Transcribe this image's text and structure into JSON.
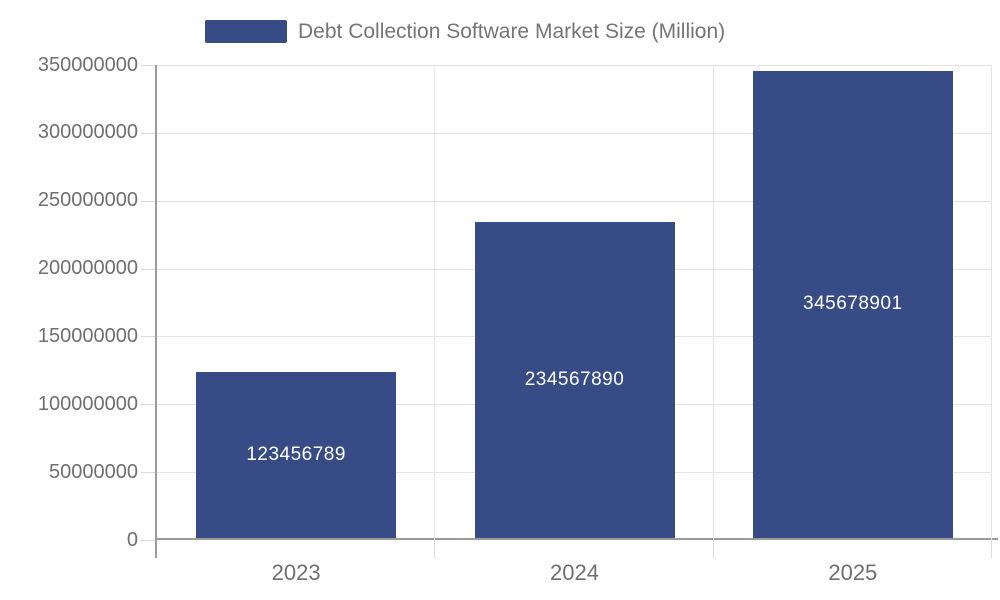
{
  "chart_data": {
    "type": "bar",
    "title": "Debt Collection Software Market Size (Million)",
    "legend": {
      "label": "Debt Collection Software Market Size (Million)",
      "position": "top-center"
    },
    "categories": [
      "2023",
      "2024",
      "2025"
    ],
    "values": [
      123456789,
      234567890,
      345678901
    ],
    "bar_labels": [
      "123456789",
      "234567890",
      "345678901"
    ],
    "y_ticks": [
      0,
      50000000,
      100000000,
      150000000,
      200000000,
      250000000,
      300000000,
      350000000
    ],
    "y_tick_labels": [
      "0",
      "50000000",
      "100000000",
      "150000000",
      "200000000",
      "250000000",
      "300000000",
      "350000000"
    ],
    "ylim": [
      0,
      350000000
    ],
    "xlabel": "",
    "ylabel": "",
    "grid": true,
    "colors": {
      "bar": "#374B87",
      "grid": "#E4E4E4",
      "tick": "#D9D9D9",
      "axis": "#9B9B9B",
      "tick_label": "#6F6F6F",
      "legend_text": "#757575",
      "bar_label_text": "#FFFFFF",
      "background": "#FFFFFF"
    }
  }
}
